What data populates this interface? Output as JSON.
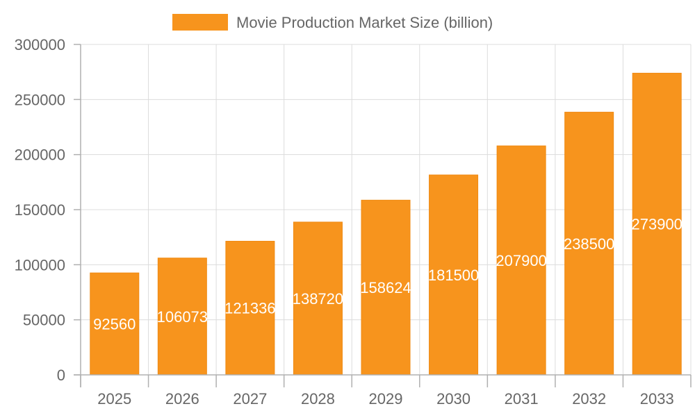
{
  "chart_data": {
    "type": "bar",
    "categories": [
      "2025",
      "2026",
      "2027",
      "2028",
      "2029",
      "2030",
      "2031",
      "2032",
      "2033"
    ],
    "series": [
      {
        "name": "Movie Production Market Size (billion)",
        "values": [
          92560,
          106073,
          121336,
          138720,
          158624,
          181500,
          207900,
          238500,
          273900
        ]
      }
    ],
    "ylim": [
      0,
      300000
    ],
    "yticks": [
      0,
      50000,
      100000,
      150000,
      200000,
      250000,
      300000
    ],
    "legend_position": "top-center",
    "grid": true,
    "bar_color": "#f7941d",
    "bar_border_color": "#f08a12",
    "data_label_color": "#ffffff"
  }
}
